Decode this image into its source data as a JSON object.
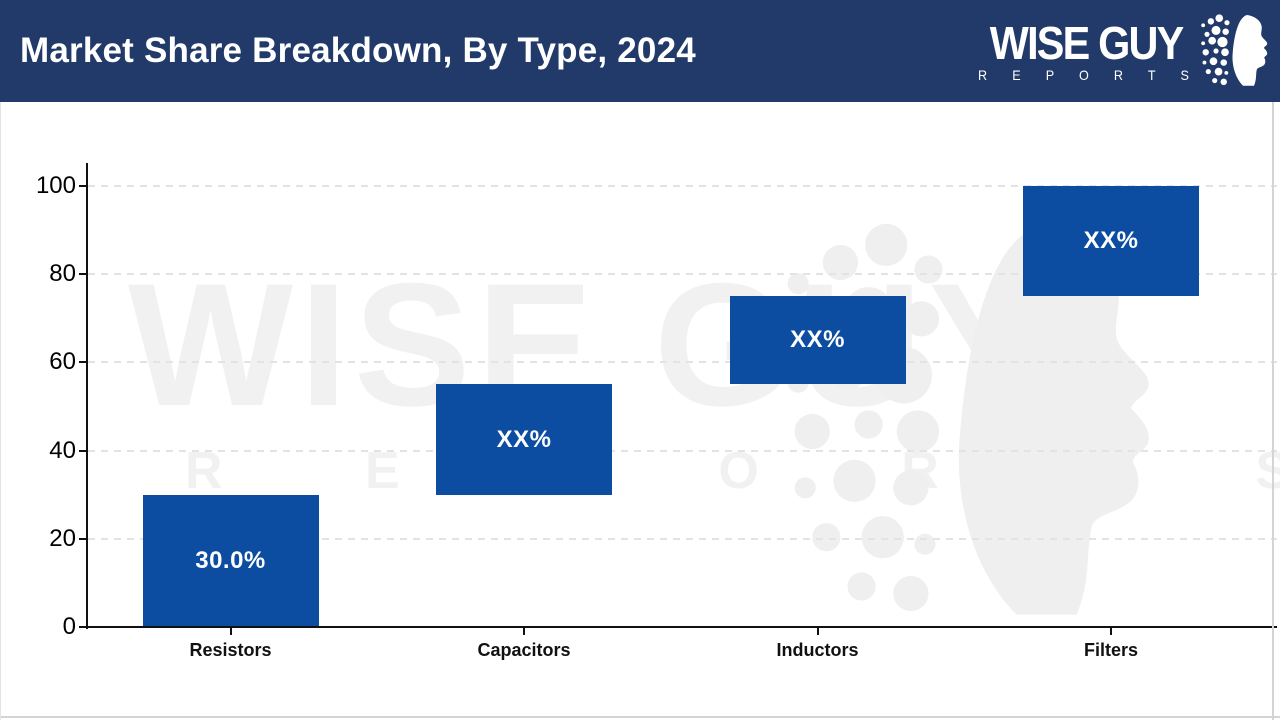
{
  "header": {
    "title": "Market Share Breakdown, By Type, 2024",
    "logo": {
      "line1": "WISE GUY",
      "line2": "R E P O R T S"
    }
  },
  "watermark": {
    "line1": "WISE GUY",
    "line2": "R E P O R T S"
  },
  "colors": {
    "header_bg": "#213a69",
    "bar": "#0c4da2",
    "grid": "#e3e3e3",
    "axis": "#111111",
    "bar_label_text": "#ffffff",
    "watermark": "#f1f1f1",
    "panel_border": "#d4d4d4"
  },
  "chart_data": {
    "type": "bar",
    "variant": "waterfall",
    "title": "Market Share Breakdown, By Type, 2024",
    "categories": [
      "Resistors",
      "Capacitors",
      "Inductors",
      "Filters"
    ],
    "segments": [
      {
        "category": "Resistors",
        "start": 0,
        "end": 30,
        "value": 30,
        "label": "30.0%"
      },
      {
        "category": "Capacitors",
        "start": 30,
        "end": 55,
        "value": 25,
        "label": "XX%"
      },
      {
        "category": "Inductors",
        "start": 55,
        "end": 75,
        "value": 20,
        "label": "XX%"
      },
      {
        "category": "Filters",
        "start": 75,
        "end": 100,
        "value": 25,
        "label": "XX%"
      }
    ],
    "xlabel": "",
    "ylabel": "",
    "ylim": [
      0,
      105
    ],
    "yticks": [
      0,
      20,
      40,
      60,
      80,
      100
    ],
    "grid": "horizontal-dashed",
    "legend": "none",
    "bar_color": "#0c4da2"
  }
}
